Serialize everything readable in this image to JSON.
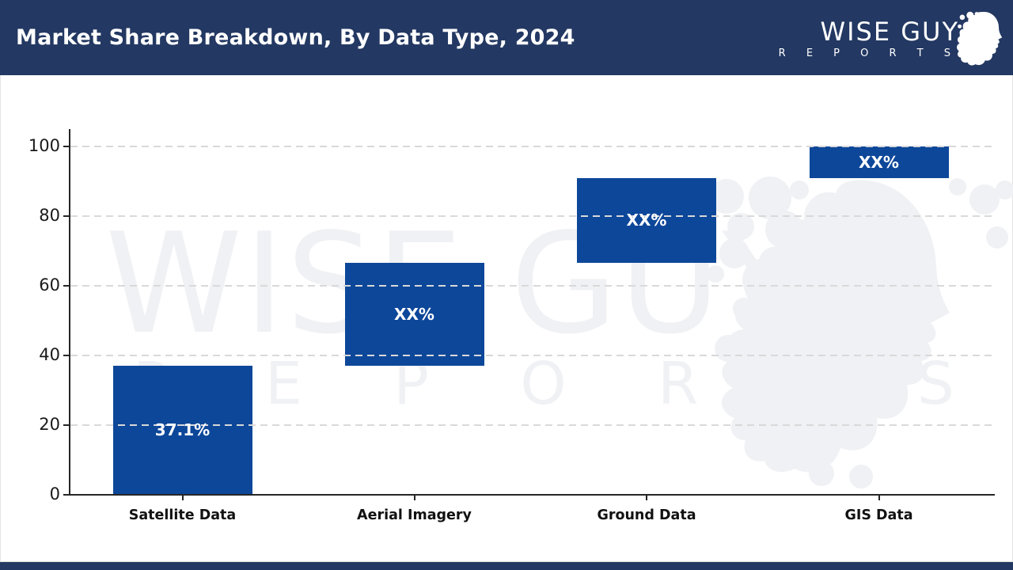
{
  "header": {
    "title": "Market Share Breakdown, By Data Type, 2024",
    "logo_line1": "WISE GUY",
    "logo_line2": "R E P O R T S"
  },
  "watermark": {
    "line1": "WISE GUY",
    "line2": "R E P O R T S"
  },
  "chart_data": {
    "type": "bar",
    "variant": "waterfall-stacked-breakdown",
    "title": "Market Share Breakdown, By Data Type, 2024",
    "categories": [
      "Satellite Data",
      "Aerial Imagery",
      "Ground Data",
      "GIS Data"
    ],
    "segments": [
      {
        "category": "Satellite Data",
        "start": 0,
        "end": 37.1,
        "label": "37.1%"
      },
      {
        "category": "Aerial Imagery",
        "start": 37.1,
        "end": 66.6,
        "label": "XX%"
      },
      {
        "category": "Ground Data",
        "start": 66.6,
        "end": 91.0,
        "label": "XX%"
      },
      {
        "category": "GIS Data",
        "start": 91.0,
        "end": 100,
        "label": "XX%"
      }
    ],
    "xlabel": "",
    "ylabel": "",
    "ylim": [
      0,
      105
    ],
    "yticks": [
      0,
      20,
      40,
      60,
      80,
      100
    ],
    "grid": "horizontal-dashed-on-top-of-bars",
    "legend": "none",
    "colors": {
      "bar": "#0d4799",
      "bar_label": "#ffffff",
      "axis": "#262626",
      "tick_label": "#1a1a1a",
      "gridline": "#d9d9d9",
      "header_bg": "#233862",
      "watermark": "#f0f1f4"
    }
  }
}
